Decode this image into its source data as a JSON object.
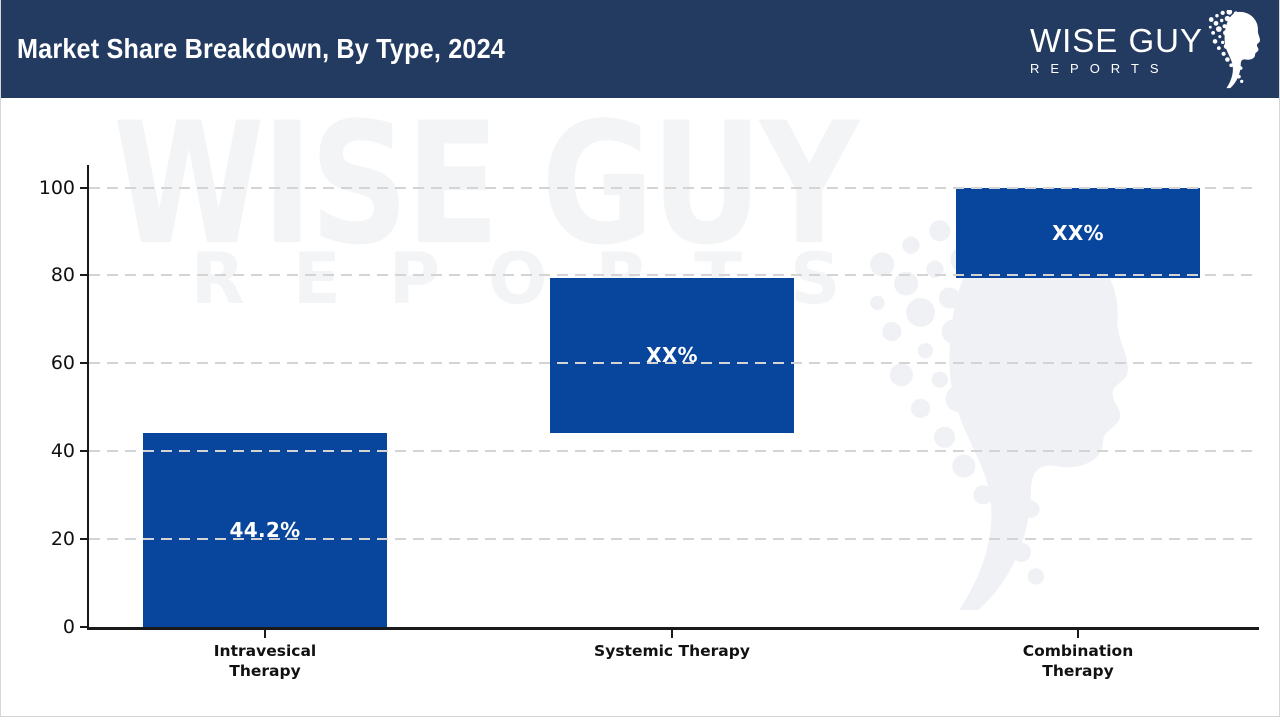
{
  "header": {
    "title": "Market Share Breakdown, By Type, 2024",
    "bg_color": "#233a61",
    "logo": {
      "line1": "WISE GUY",
      "line2": "REPORTS"
    }
  },
  "watermark": {
    "line1": "WISE GUY",
    "line2": "REPORTS"
  },
  "chart_data": {
    "type": "bar",
    "variant": "waterfall",
    "title": "Market Share Breakdown, By Type, 2024",
    "categories": [
      "Intravesical\nTherapy",
      "Systemic Therapy",
      "Combination\nTherapy"
    ],
    "segments": [
      {
        "category": "Intravesical Therapy",
        "start": 0,
        "end": 44.2,
        "label": "44.2%"
      },
      {
        "category": "Systemic Therapy",
        "start": 44.2,
        "end": 79.4,
        "label": "XX%"
      },
      {
        "category": "Combination Therapy",
        "start": 79.4,
        "end": 100,
        "label": "XX%"
      }
    ],
    "xlabel": "",
    "ylabel": "",
    "ylim": [
      0,
      100
    ],
    "yticks": [
      0,
      20,
      40,
      60,
      80,
      100
    ],
    "grid": "horizontal-dashed",
    "legend": "none",
    "bar_color": "#07469c",
    "bar_label_color": "#ffffff",
    "axis_color": "#1a1a1a",
    "grid_color": "#d4d4d4"
  }
}
